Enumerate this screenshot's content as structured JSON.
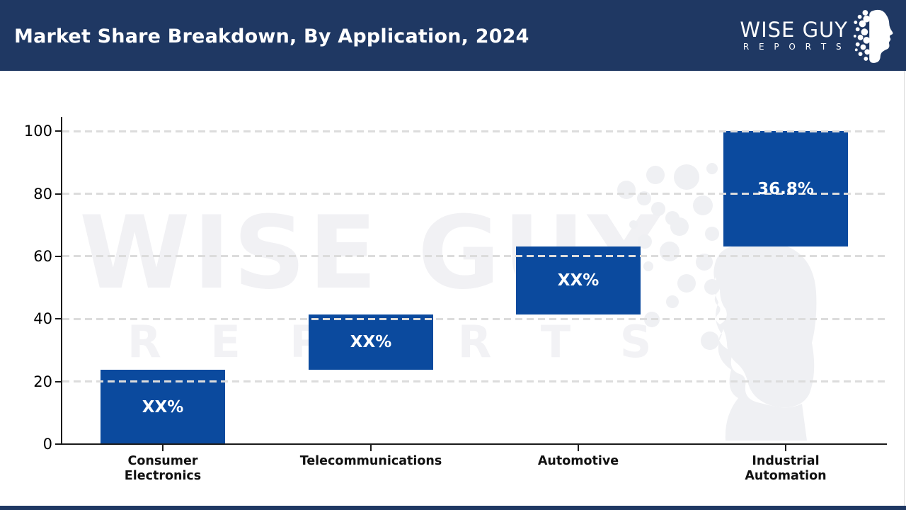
{
  "header": {
    "title": "Market Share Breakdown, By Application, 2024",
    "logo": {
      "name": "WISE GUY",
      "tagline": "R E P O R T S"
    }
  },
  "watermark": {
    "line1": "WISE GUY",
    "line2": "R E P O R T S"
  },
  "colors": {
    "header_bg": "#1f3863",
    "footer_bg": "#1f3863",
    "bar": "#0b4a9e",
    "gridline": "#dcdcdc",
    "axis": "#1a1a1a",
    "watermark": "#f1f1f4",
    "bar_label_text": "#ffffff",
    "title_text": "#ffffff"
  },
  "chart_data": {
    "type": "bar",
    "subtype": "waterfall-floating-segments",
    "title": "Market Share Breakdown, By Application, 2024",
    "xlabel": "",
    "ylabel": "",
    "ylim": [
      0,
      100
    ],
    "yticks": [
      0,
      20,
      40,
      60,
      80,
      100
    ],
    "grid": "horizontal-dashed",
    "legend": "none",
    "categories": [
      "Consumer Electronics",
      "Telecommunications",
      "Automotive",
      "Industrial Automation"
    ],
    "category_lines": [
      [
        "Consumer",
        "Electronics"
      ],
      [
        "Telecommunications"
      ],
      [
        "Automotive"
      ],
      [
        "Industrial",
        "Automation"
      ]
    ],
    "bars": [
      {
        "category": "Consumer Electronics",
        "start": 0,
        "end": 23.7,
        "size": 23.7,
        "label": "XX%"
      },
      {
        "category": "Telecommunications",
        "start": 23.7,
        "end": 41.5,
        "size": 17.8,
        "label": "XX%"
      },
      {
        "category": "Automotive",
        "start": 41.5,
        "end": 63.2,
        "size": 21.7,
        "label": "XX%"
      },
      {
        "category": "Industrial Automation",
        "start": 63.2,
        "end": 100,
        "size": 36.8,
        "label": "36.8%"
      }
    ]
  }
}
